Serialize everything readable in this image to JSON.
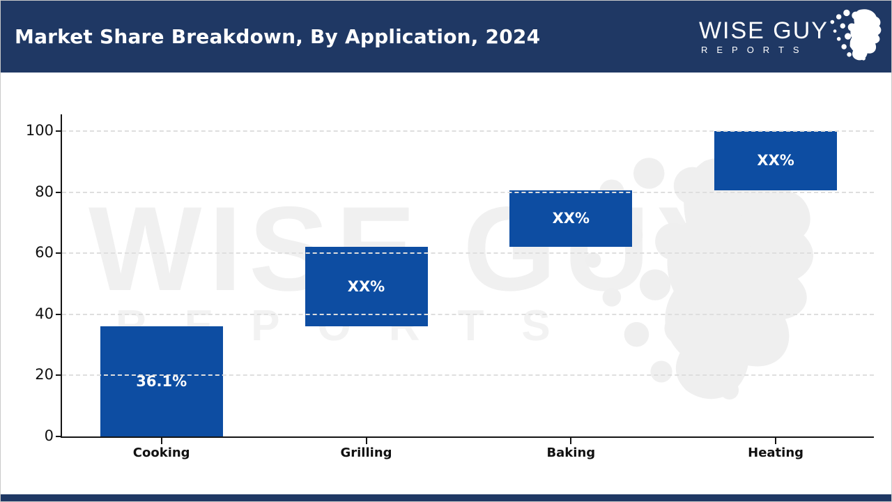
{
  "header": {
    "title": "Market Share Breakdown, By Application, 2024",
    "logo": {
      "name_top": "WISE GUY",
      "name_bottom": "REPORTS"
    }
  },
  "watermark": {
    "text_top": "WISE GUY",
    "text_bottom": "REPORTS"
  },
  "colors": {
    "header_bg": "#1f3864",
    "footer_bg": "#1f3864",
    "bar_blue": "#0d4da2",
    "grid_gray": "#dedede",
    "watermark_gray": "#f0f0f0",
    "axis_black": "#141414",
    "page_border": "#c9c9c9"
  },
  "chart_data": {
    "type": "bar",
    "subtype": "floating-waterfall-segments",
    "title": "Market Share Breakdown, By Application, 2024",
    "categories": [
      "Cooking",
      "Grilling",
      "Baking",
      "Heating"
    ],
    "segments": [
      {
        "category": "Cooking",
        "start": 0,
        "end": 36.1,
        "label": "36.1%"
      },
      {
        "category": "Grilling",
        "start": 36.1,
        "end": 62.2,
        "label": "XX%"
      },
      {
        "category": "Baking",
        "start": 62.2,
        "end": 80.6,
        "label": "XX%"
      },
      {
        "category": "Heating",
        "start": 80.6,
        "end": 100,
        "label": "XX%"
      }
    ],
    "bar_labels": [
      "36.1%",
      "XX%",
      "XX%",
      "XX%"
    ],
    "yticks": [
      0,
      20,
      40,
      60,
      80,
      100
    ],
    "ylim": [
      0,
      105.5
    ],
    "xlabel": "",
    "ylabel": "",
    "grid": {
      "axis": "y",
      "style": "dashed",
      "drawn_over_bars": true
    },
    "legend": "none",
    "bar_color": "#0d4da2",
    "bar_label_color": "#ffffff"
  }
}
